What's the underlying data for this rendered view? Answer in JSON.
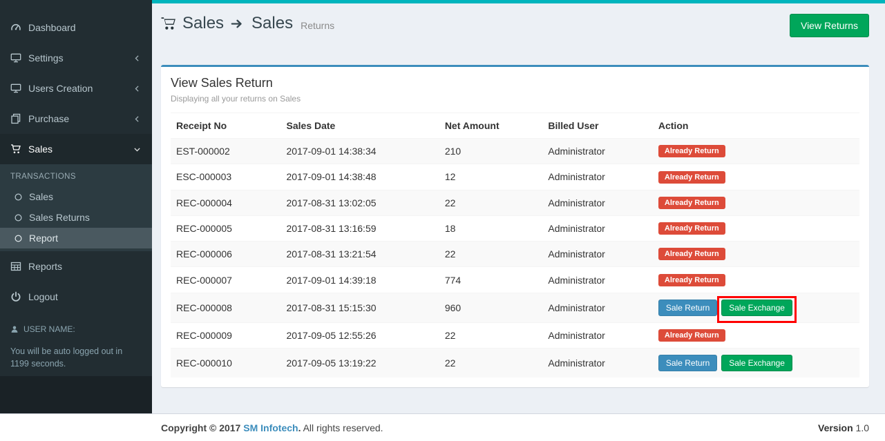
{
  "sidebar": {
    "items": [
      {
        "label": "Dashboard"
      },
      {
        "label": "Settings"
      },
      {
        "label": "Users Creation"
      },
      {
        "label": "Purchase"
      },
      {
        "label": "Sales"
      }
    ],
    "transactions_header": "TRANSACTIONS",
    "sub_items": [
      {
        "label": "Sales"
      },
      {
        "label": "Sales Returns"
      },
      {
        "label": "Report"
      }
    ],
    "reports_label": "Reports",
    "logout_label": "Logout",
    "user_name_label": "USER NAME:",
    "auto_logout_text": "You will be auto logged out in 1199 seconds."
  },
  "header": {
    "section": "Sales",
    "page": "Sales",
    "page_small": "Returns",
    "view_returns_label": "View Returns"
  },
  "card": {
    "title": "View Sales Return",
    "subtitle": "Displaying all your returns on Sales"
  },
  "table": {
    "columns": [
      "Receipt No",
      "Sales Date",
      "Net Amount",
      "Billed User",
      "Action"
    ],
    "action_labels": {
      "already": "Already Return",
      "return": "Sale Return",
      "exchange": "Sale Exchange"
    },
    "rows": [
      {
        "receipt": "EST-000002",
        "date": "2017-09-01 14:38:34",
        "amount": "210",
        "user": "Administrator",
        "actions": [
          {
            "type": "already"
          }
        ]
      },
      {
        "receipt": "ESC-000003",
        "date": "2017-09-01 14:38:48",
        "amount": "12",
        "user": "Administrator",
        "actions": [
          {
            "type": "already"
          }
        ]
      },
      {
        "receipt": "REC-000004",
        "date": "2017-08-31 13:02:05",
        "amount": "22",
        "user": "Administrator",
        "actions": [
          {
            "type": "already"
          }
        ]
      },
      {
        "receipt": "REC-000005",
        "date": "2017-08-31 13:16:59",
        "amount": "18",
        "user": "Administrator",
        "actions": [
          {
            "type": "already"
          }
        ]
      },
      {
        "receipt": "REC-000006",
        "date": "2017-08-31 13:21:54",
        "amount": "22",
        "user": "Administrator",
        "actions": [
          {
            "type": "already"
          }
        ]
      },
      {
        "receipt": "REC-000007",
        "date": "2017-09-01 14:39:18",
        "amount": "774",
        "user": "Administrator",
        "actions": [
          {
            "type": "already"
          }
        ]
      },
      {
        "receipt": "REC-000008",
        "date": "2017-08-31 15:15:30",
        "amount": "960",
        "user": "Administrator",
        "actions": [
          {
            "type": "return"
          },
          {
            "type": "exchange",
            "annotated": true
          }
        ]
      },
      {
        "receipt": "REC-000009",
        "date": "2017-09-05 12:55:26",
        "amount": "22",
        "user": "Administrator",
        "actions": [
          {
            "type": "already"
          }
        ]
      },
      {
        "receipt": "REC-000010",
        "date": "2017-09-05 13:19:22",
        "amount": "22",
        "user": "Administrator",
        "actions": [
          {
            "type": "return"
          },
          {
            "type": "exchange"
          }
        ]
      }
    ]
  },
  "footer": {
    "copyright_bold": "Copyright © 2017",
    "company": "SM Infotech",
    "dot": ".",
    "rights": "All rights reserved.",
    "version_label": "Version",
    "version_value": "1.0"
  },
  "colors": {
    "accent_blue": "#3c8dbc",
    "button_green": "#00a65a",
    "badge_red": "#dd4b39",
    "top_bar_teal": "#00b5bd",
    "sidebar_bg": "#222d32",
    "submenu_bg": "#2c3b41",
    "content_bg": "#ecf0f5",
    "annotation_red": "#ff0000"
  }
}
